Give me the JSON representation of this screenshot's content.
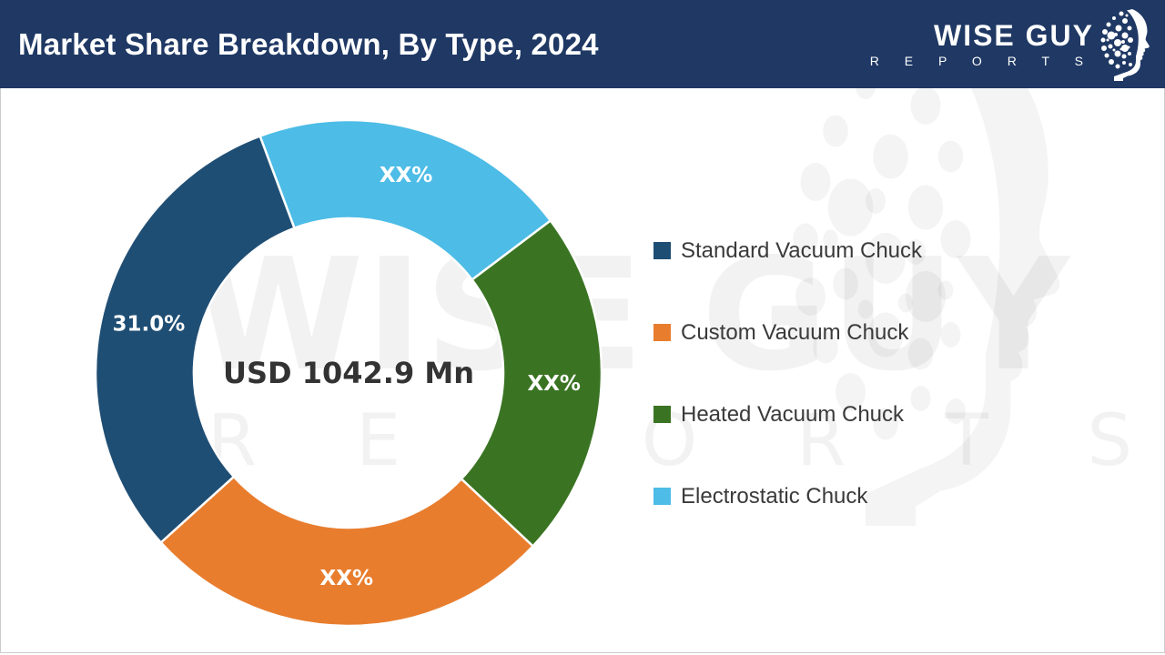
{
  "header": {
    "title": "Market Share Breakdown, By Type, 2024",
    "background_color": "#1f3864",
    "logo": {
      "line1": "WISE GUY",
      "line2": "R E P O R T S",
      "icon": "dotted-face-profile"
    }
  },
  "watermark": {
    "line1": "WISE GUY",
    "line2": "R E P O R T S",
    "icon": "dotted-face-profile"
  },
  "chart_data": {
    "type": "pie",
    "subtype": "donut",
    "title": "Market Share Breakdown, By Type, 2024",
    "center_label": "USD 1042.9 Mn",
    "start_angle_deg": 110.5,
    "direction": "counterclockwise",
    "inner_radius_ratio": 0.61,
    "legend_position": "right",
    "series": [
      {
        "name": "Standard Vacuum Chuck",
        "value": 31.0,
        "label": "31.0%",
        "color": "#1f4e74"
      },
      {
        "name": "Custom Vacuum Chuck",
        "value": 26.3,
        "label": "XX%",
        "color": "#e87d2e"
      },
      {
        "name": "Heated Vacuum Chuck",
        "value": 22.3,
        "label": "XX%",
        "color": "#3a7423"
      },
      {
        "name": "Electrostatic Chuck",
        "value": 20.4,
        "label": "XX%",
        "color": "#4dbce6"
      }
    ]
  },
  "legend": {
    "items": [
      {
        "label": "Standard Vacuum Chuck",
        "color": "#1f4e74"
      },
      {
        "label": "Custom Vacuum Chuck",
        "color": "#e87d2e"
      },
      {
        "label": "Heated Vacuum Chuck",
        "color": "#3a7423"
      },
      {
        "label": "Electrostatic Chuck",
        "color": "#4dbce6"
      }
    ]
  }
}
